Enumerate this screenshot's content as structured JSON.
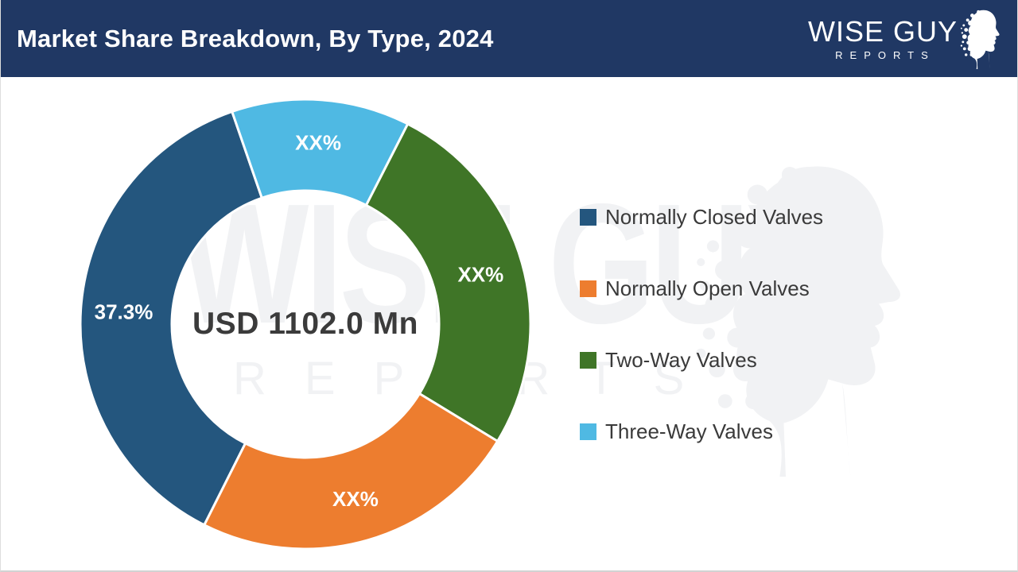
{
  "header": {
    "title": "Market Share Breakdown, By Type, 2024",
    "bg_color": "#203864",
    "logo": {
      "line1": "WISE GUY",
      "line2": "REPORTS"
    }
  },
  "watermark": {
    "line1": "WISE GUY",
    "line2": "REPORTS"
  },
  "chart_data": {
    "type": "pie",
    "donut": true,
    "center_label": "USD 1102.0 Mn",
    "start_angle_deg": 206.7,
    "direction": "clockwise",
    "slices": [
      {
        "label": "Normally Closed Valves",
        "display": "37.3%",
        "percent": 37.3,
        "color": "#24567E"
      },
      {
        "label": "Three-Way Valves",
        "display": "XX%",
        "percent": 12.8,
        "color": "#4FB9E3"
      },
      {
        "label": "Two-Way Valves",
        "display": "XX%",
        "percent": 26.2,
        "color": "#3F7527"
      },
      {
        "label": "Normally Open Valves",
        "display": "XX%",
        "percent": 23.7,
        "color": "#ED7D2F"
      }
    ]
  },
  "legend": {
    "items": [
      {
        "label": "Normally Closed Valves",
        "color": "#24567E"
      },
      {
        "label": "Normally Open Valves",
        "color": "#ED7D2F"
      },
      {
        "label": "Two-Way Valves",
        "color": "#3F7527"
      },
      {
        "label": "Three-Way Valves",
        "color": "#4FB9E3"
      }
    ]
  }
}
